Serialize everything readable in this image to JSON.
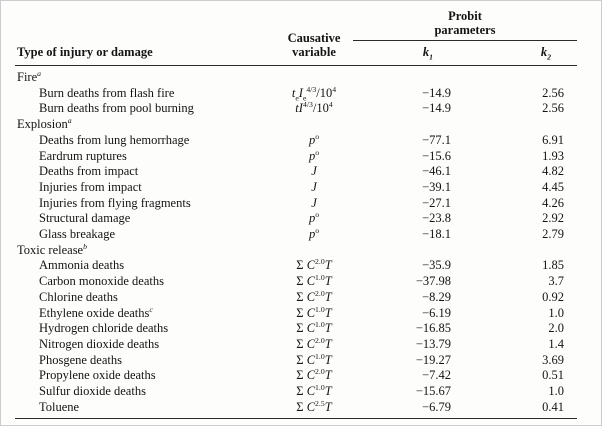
{
  "table": {
    "probit_group_label": "Probit parameters",
    "columns": {
      "injury": "Type of injury or damage",
      "causative": "Causative variable",
      "k1_html": "k<sub>1</sub>",
      "k2_html": "k<sub>2</sub>"
    },
    "sections": [
      {
        "label": "Fire",
        "note": "a",
        "rows": [
          {
            "injury": "Burn deaths from flash fire",
            "causative_html": "<i>t</i><sub>e</sub><i>I</i><sub>e</sub><sup>4/3</sup>/10<sup>4</sup>",
            "k1": "−14.9",
            "k2": "2.56"
          },
          {
            "injury": "Burn deaths from pool burning",
            "causative_html": "<i>tI</i><sup>4/3</sup>/10<sup>4</sup>",
            "k1": "−14.9",
            "k2": "2.56"
          }
        ]
      },
      {
        "label": "Explosion",
        "note": "a",
        "rows": [
          {
            "injury": "Deaths from lung hemorrhage",
            "causative_html": "<i>p</i><sup>o</sup>",
            "k1": "−77.1",
            "k2": "6.91"
          },
          {
            "injury": "Eardrum ruptures",
            "causative_html": "<i>p</i><sup>o</sup>",
            "k1": "−15.6",
            "k2": "1.93"
          },
          {
            "injury": "Deaths from impact",
            "causative_html": "<i>J</i>",
            "k1": "−46.1",
            "k2": "4.82"
          },
          {
            "injury": "Injuries from impact",
            "causative_html": "<i>J</i>",
            "k1": "−39.1",
            "k2": "4.45"
          },
          {
            "injury": "Injuries from flying fragments",
            "causative_html": "<i>J</i>",
            "k1": "−27.1",
            "k2": "4.26"
          },
          {
            "injury": "Structural damage",
            "causative_html": "<i>p</i><sup>o</sup>",
            "k1": "−23.8",
            "k2": "2.92"
          },
          {
            "injury": "Glass breakage",
            "causative_html": "<i>p</i><sup>o</sup>",
            "k1": "−18.1",
            "k2": "2.79"
          }
        ]
      },
      {
        "label": "Toxic release",
        "note": "b",
        "rows": [
          {
            "injury": "Ammonia deaths",
            "causative_html": "Σ <i>C</i><sup>2.0</sup><i>T</i>",
            "k1": "−35.9",
            "k2": "1.85"
          },
          {
            "injury": "Carbon monoxide deaths",
            "causative_html": "Σ <i>C</i><sup>1.0</sup><i>T</i>",
            "k1": "−37.98",
            "k2": "3.7"
          },
          {
            "injury": "Chlorine deaths",
            "causative_html": "Σ <i>C</i><sup>2.0</sup><i>T</i>",
            "k1": "−8.29",
            "k2": "0.92"
          },
          {
            "injury": "Ethylene oxide deaths",
            "note": "c",
            "causative_html": "Σ <i>C</i><sup>1.0</sup><i>T</i>",
            "k1": "−6.19",
            "k2": "1.0"
          },
          {
            "injury": "Hydrogen chloride deaths",
            "causative_html": "Σ <i>C</i><sup>1.0</sup><i>T</i>",
            "k1": "−16.85",
            "k2": "2.0"
          },
          {
            "injury": "Nitrogen dioxide deaths",
            "causative_html": "Σ <i>C</i><sup>2.0</sup><i>T</i>",
            "k1": "−13.79",
            "k2": "1.4"
          },
          {
            "injury": "Phosgene deaths",
            "causative_html": "Σ <i>C</i><sup>1.0</sup><i>T</i>",
            "k1": "−19.27",
            "k2": "3.69"
          },
          {
            "injury": "Propylene oxide deaths",
            "causative_html": "Σ <i>C</i><sup>2.0</sup><i>T</i>",
            "k1": "−7.42",
            "k2": "0.51"
          },
          {
            "injury": "Sulfur dioxide deaths",
            "causative_html": "Σ <i>C</i><sup>1.0</sup><i>T</i>",
            "k1": "−15.67",
            "k2": "1.0"
          },
          {
            "injury": "Toluene",
            "causative_html": "Σ <i>C</i><sup>2.5</sup><i>T</i>",
            "k1": "−6.79",
            "k2": "0.41"
          }
        ]
      }
    ]
  }
}
